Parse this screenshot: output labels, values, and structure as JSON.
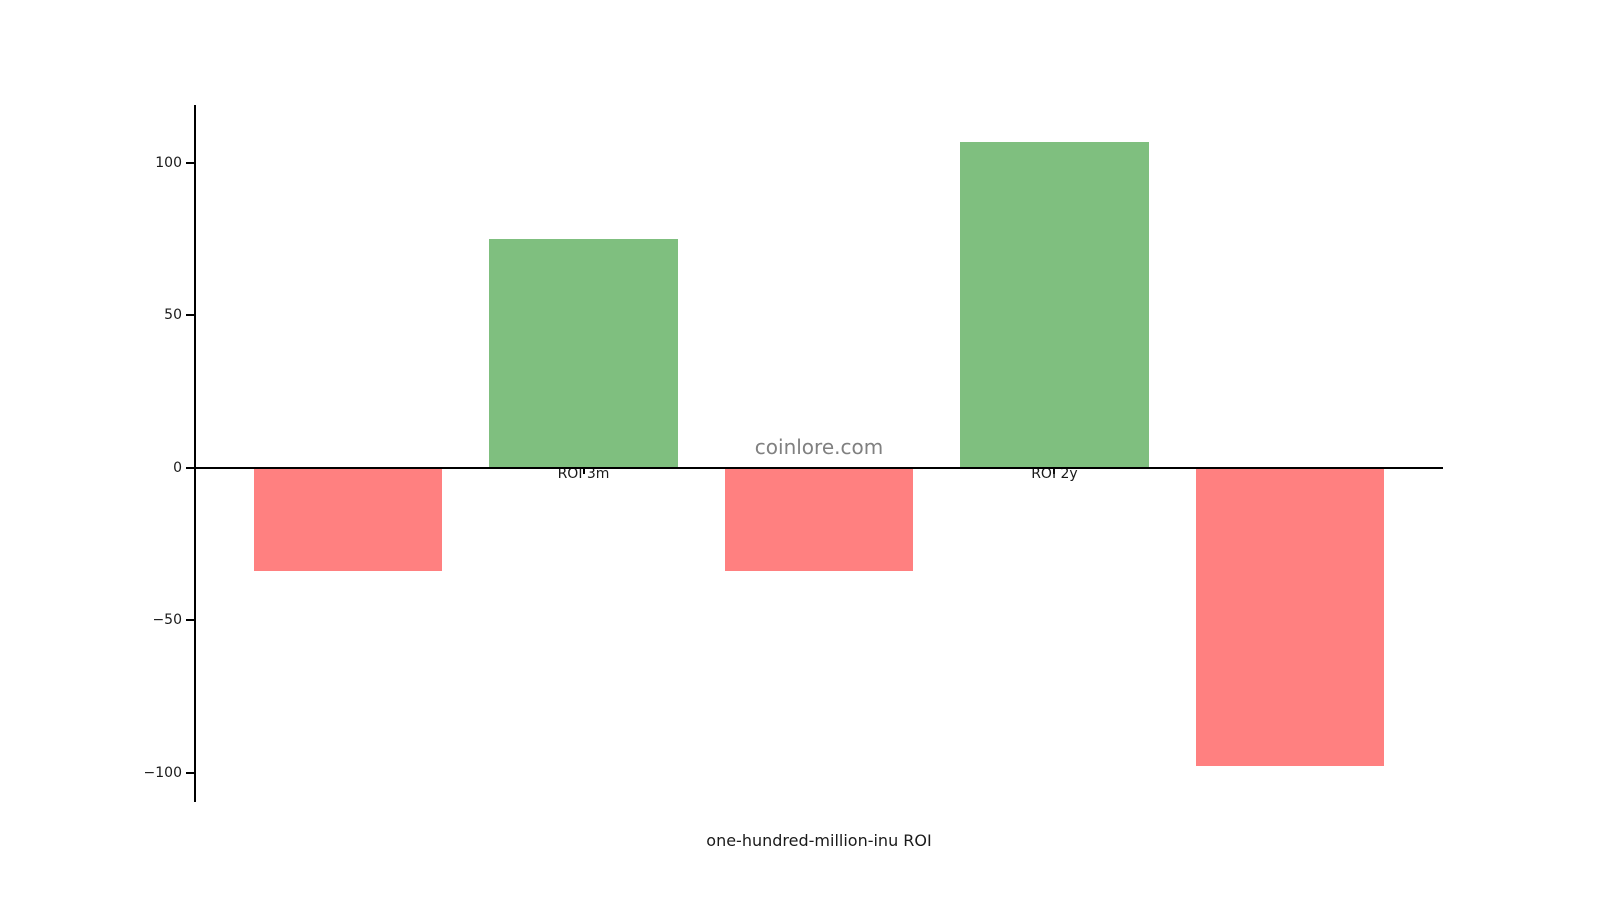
{
  "page": {
    "background": "#ffffff"
  },
  "watermark": {
    "text": "coinlore.com",
    "color": "#808080"
  },
  "chart_data": {
    "type": "bar",
    "title": "",
    "xlabel": "one-hundred-million-inu ROI",
    "ylabel": "",
    "categories": [
      "",
      "ROI 3m",
      "",
      "ROI 2y",
      ""
    ],
    "values": [
      -34,
      75,
      -34,
      107,
      -98
    ],
    "bar_colors": [
      "#ff8080",
      "#7fbf7f",
      "#ff8080",
      "#7fbf7f",
      "#ff8080"
    ],
    "negative_color": "#ff8080",
    "positive_color": "#7fbf7f",
    "ytick_values": [
      100,
      50,
      0,
      -50,
      -100
    ],
    "ytick_labels": [
      "100",
      "50",
      "0",
      "−50",
      "−100"
    ],
    "xlim": [
      -0.65,
      4.65
    ],
    "ylim": [
      -109,
      119
    ],
    "bar_width_ratio": 0.8,
    "grid": false,
    "legend": "none"
  }
}
